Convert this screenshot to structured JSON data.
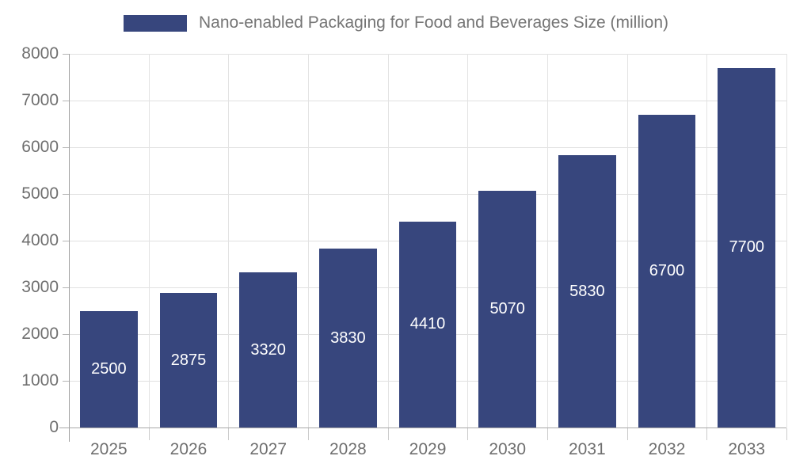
{
  "legend": {
    "label": "Nano-enabled Packaging for Food and Beverages Size (million)"
  },
  "colors": {
    "bar": "#37467D",
    "bar_value_text": "#ffffff",
    "legend_text": "#757575",
    "tick_text": "#6f6f6f",
    "grid_line": "#e0e0e0",
    "axis_line": "#a0a0a0",
    "background": "#ffffff"
  },
  "chart_data": {
    "type": "bar",
    "title": "Nano-enabled Packaging for Food and Beverages Size (million)",
    "series_name": "Nano-enabled Packaging for Food and Beverages Size (million)",
    "categories": [
      "2025",
      "2026",
      "2027",
      "2028",
      "2029",
      "2030",
      "2031",
      "2032",
      "2033"
    ],
    "values": [
      2500,
      2875,
      3320,
      3830,
      4410,
      5070,
      5830,
      6700,
      7700
    ],
    "bar_labels": [
      "2500",
      "2875",
      "3320",
      "3830",
      "4410",
      "5070",
      "5830",
      "6700",
      "7700"
    ],
    "xlabel": "",
    "ylabel": "",
    "ylim": [
      0,
      8000
    ],
    "yticks": [
      0,
      1000,
      2000,
      3000,
      4000,
      5000,
      6000,
      7000,
      8000
    ],
    "grid": true,
    "legend_position": "top",
    "bar_label_position": "center-inside"
  }
}
